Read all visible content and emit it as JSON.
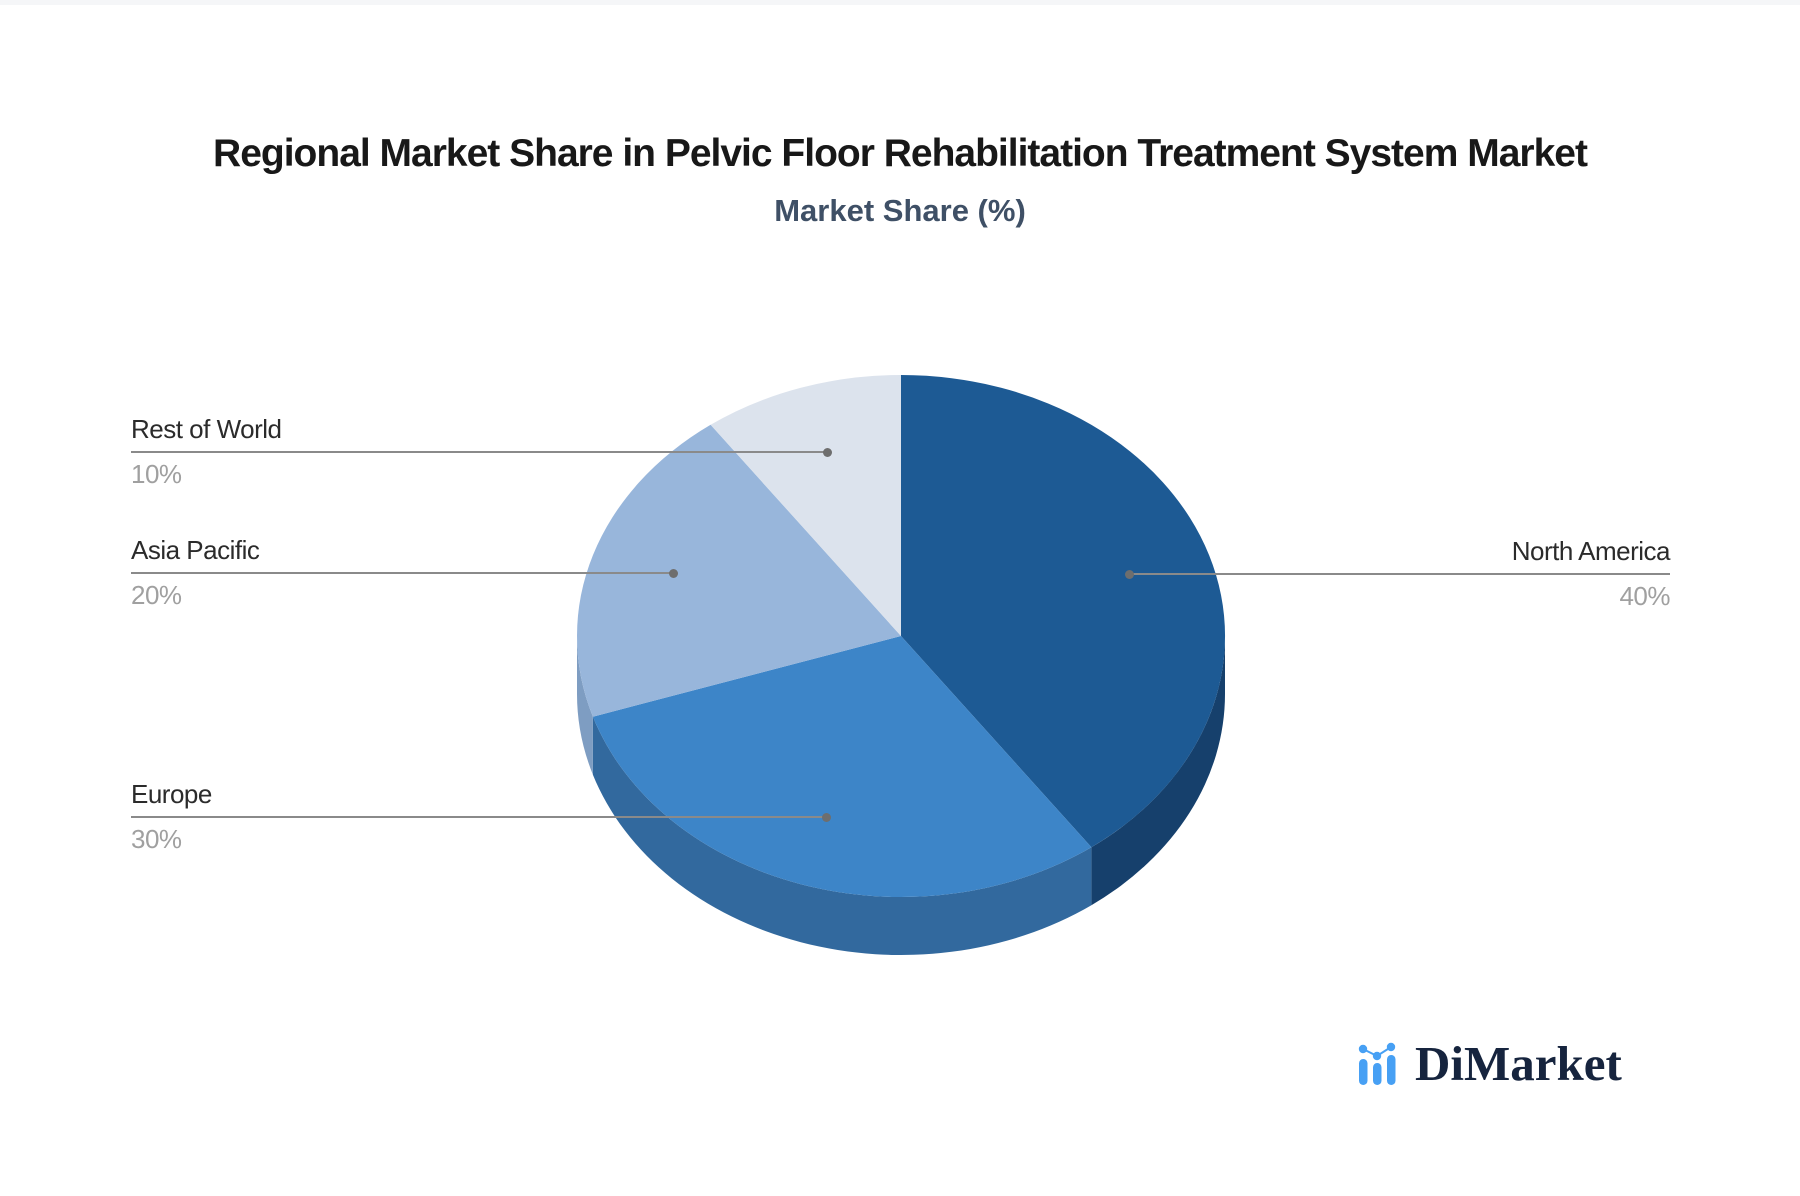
{
  "window": {
    "top_strip_color": "#f5f6f8"
  },
  "chart_data": {
    "type": "pie",
    "title": "Regional Market Share in Pelvic Floor Rehabilitation Treatment System Market",
    "subtitle": "Market Share (%)",
    "unit": "%",
    "effect": "3d",
    "start_angle_deg": -90,
    "direction": "clockwise",
    "legend_position": "callout-labels",
    "slices": [
      {
        "label": "North America",
        "value": 40,
        "value_label": "40%",
        "color": "#1d5a94",
        "side_color": "#16406c",
        "callout_side": "right"
      },
      {
        "label": "Europe",
        "value": 30,
        "value_label": "30%",
        "color": "#3d85c8",
        "side_color": "#32699e",
        "callout_side": "left"
      },
      {
        "label": "Asia Pacific",
        "value": 20,
        "value_label": "20%",
        "color": "#98b6db",
        "side_color": "#7e9dc2",
        "callout_side": "left"
      },
      {
        "label": "Rest of World",
        "value": 10,
        "value_label": "10%",
        "color": "#dce3ed",
        "side_color": "#b9c4d4",
        "callout_side": "left"
      }
    ]
  },
  "callout_style": {
    "line_color": "#8a8a8a",
    "dot_color": "#6e6e6e",
    "name_color": "#2b2b2b",
    "pct_color": "#a0a0a0"
  },
  "branding": {
    "logo_text": "DiMarket",
    "logo_icon": "bar-line-chart-icon",
    "logo_text_color": "#16243e",
    "logo_icon_color": "#47a0f4"
  }
}
